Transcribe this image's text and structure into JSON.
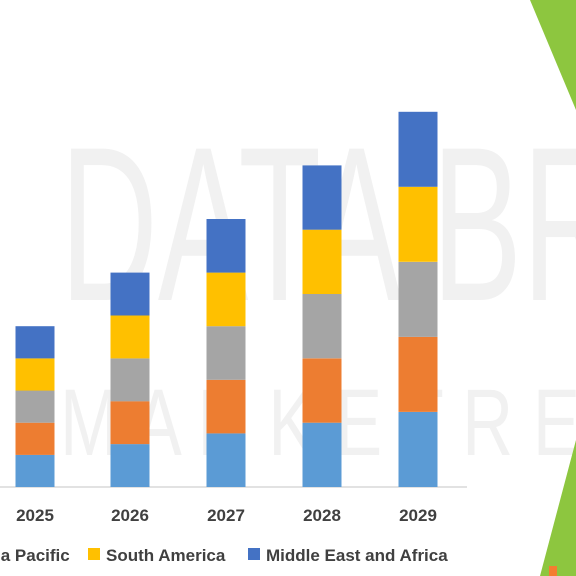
{
  "watermark": {
    "line1": "DATA BR",
    "line2": "M A R K E T R E"
  },
  "colors": {
    "accent_triangle": "#8dc63f",
    "accent_small": "#f47d30",
    "axis": "#d9d9d9"
  },
  "chart_data": {
    "type": "bar",
    "stacked": true,
    "categories": [
      "2025",
      "2026",
      "2027",
      "2028",
      "2029"
    ],
    "series": [
      {
        "name": "",
        "color": "#5b9bd5",
        "values": [
          0.6,
          0.8,
          1.0,
          1.2,
          1.4
        ]
      },
      {
        "name": "",
        "color": "#ed7d31",
        "values": [
          0.6,
          0.8,
          1.0,
          1.2,
          1.4
        ]
      },
      {
        "name": "",
        "color": "#a5a5a5",
        "values": [
          0.6,
          0.8,
          1.0,
          1.2,
          1.4
        ]
      },
      {
        "name": "South America",
        "color": "#ffc000",
        "values": [
          0.6,
          0.8,
          1.0,
          1.2,
          1.4
        ]
      },
      {
        "name": "Middle East and Africa",
        "color": "#4472c4",
        "values": [
          0.6,
          0.8,
          1.0,
          1.2,
          1.4
        ]
      }
    ],
    "legend": {
      "position": "bottom",
      "entries": [
        {
          "label": "ia Pacific",
          "color": "#ed7d31"
        },
        {
          "label": "South America",
          "color": "#ffc000"
        },
        {
          "label": "Middle East and Africa",
          "color": "#4472c4"
        }
      ]
    },
    "grid": false,
    "title": "",
    "xlabel": "",
    "ylabel": ""
  }
}
